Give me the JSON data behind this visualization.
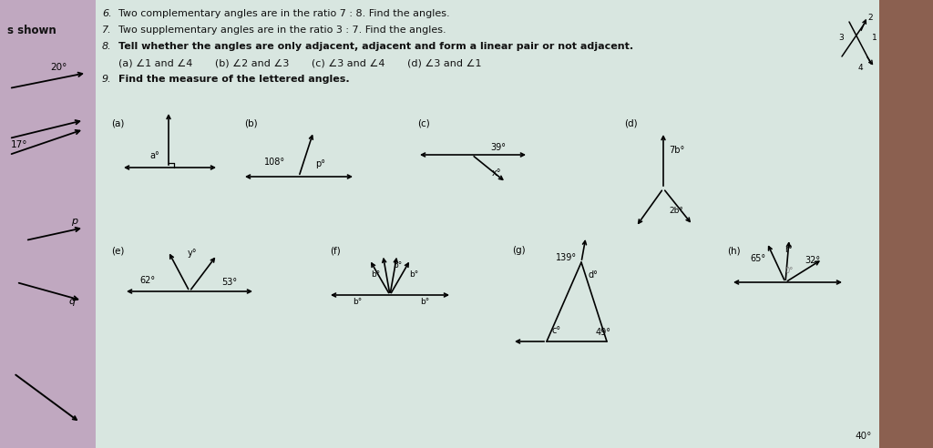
{
  "outer_bg": "#a08878",
  "page_bg": "#dce8e8",
  "left_margin_bg": "#c8b8d0",
  "text_lines": [
    [
      "6.",
      " Two complementary angles are in the ratio 7 : 8. Find the angles.",
      false
    ],
    [
      "7.",
      " Two supplementary angles are in the ratio 3 : 7. Find the angles.",
      false
    ],
    [
      "8.",
      " Tell whether the angles are only adjacent, adjacent and form a linear pair or not adjacent.",
      true
    ],
    [
      "",
      "    (a) ∠1 and ∠4       (b) ∠2 and ∠3       (c) ∠3 and ∠4       (d) ∠3 and ∠1",
      false
    ],
    [
      "9.",
      " Find the measure of the lettered angles.",
      true
    ]
  ],
  "fig_width": 10.24,
  "fig_height": 4.92,
  "dpi": 100
}
